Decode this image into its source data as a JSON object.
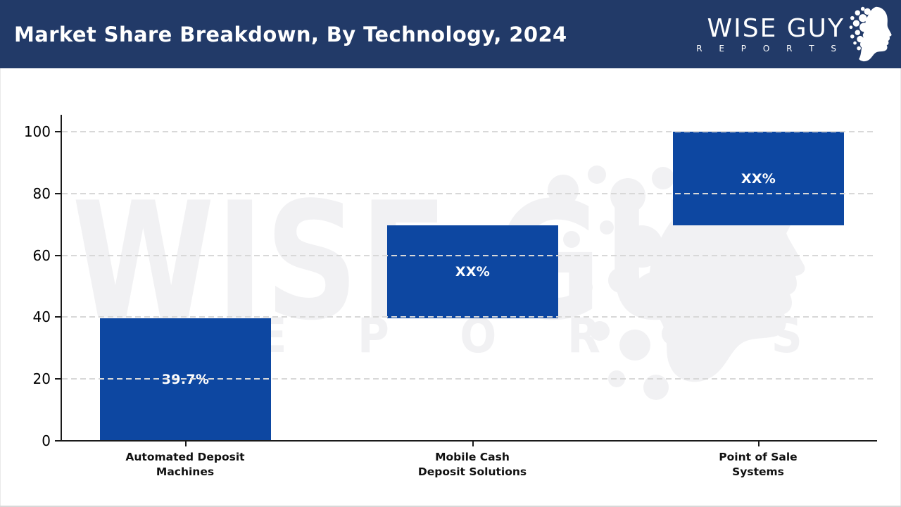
{
  "header": {
    "title": "Market Share Breakdown, By Technology, 2024",
    "logo": {
      "name_top": "WISE GUY",
      "name_bottom": "R E P O R T S"
    },
    "bg_color": "#223a68"
  },
  "watermark": {
    "text_top": "WISE GUY",
    "text_bottom": "R E P O R T S"
  },
  "colors": {
    "bar_blue": "#0d47a1",
    "header_navy": "#223a68",
    "gridline_gray": "#d8d8d8",
    "watermark_gray": "#f1f1f3"
  },
  "chart_data": {
    "type": "bar",
    "variant": "floating-segment-bars (each bar stacks where the previous one ends)",
    "title": "Market Share Breakdown, By Technology, 2024",
    "categories": [
      {
        "line1": "Automated Deposit",
        "line2": "Machines"
      },
      {
        "line1": "Mobile Cash",
        "line2": "Deposit Solutions"
      },
      {
        "line1": "Point of Sale",
        "line2": "Systems"
      }
    ],
    "segments": [
      {
        "start": 0,
        "end": 39.7,
        "value": 39.7,
        "label": "39.7%"
      },
      {
        "start": 39.7,
        "end": 69.7,
        "value": 30.0,
        "label": "XX%"
      },
      {
        "start": 69.7,
        "end": 100,
        "value": 30.3,
        "label": "XX%"
      }
    ],
    "yticks": [
      "0",
      "20",
      "40",
      "60",
      "80",
      "100"
    ],
    "ylim": [
      0,
      105.5
    ],
    "xlabel": "",
    "ylabel": "",
    "grid": "horizontal dashed, drawn above bars",
    "legend": "none",
    "bar_color": "#0d47a1",
    "bar_label_color": "#ffffff"
  }
}
